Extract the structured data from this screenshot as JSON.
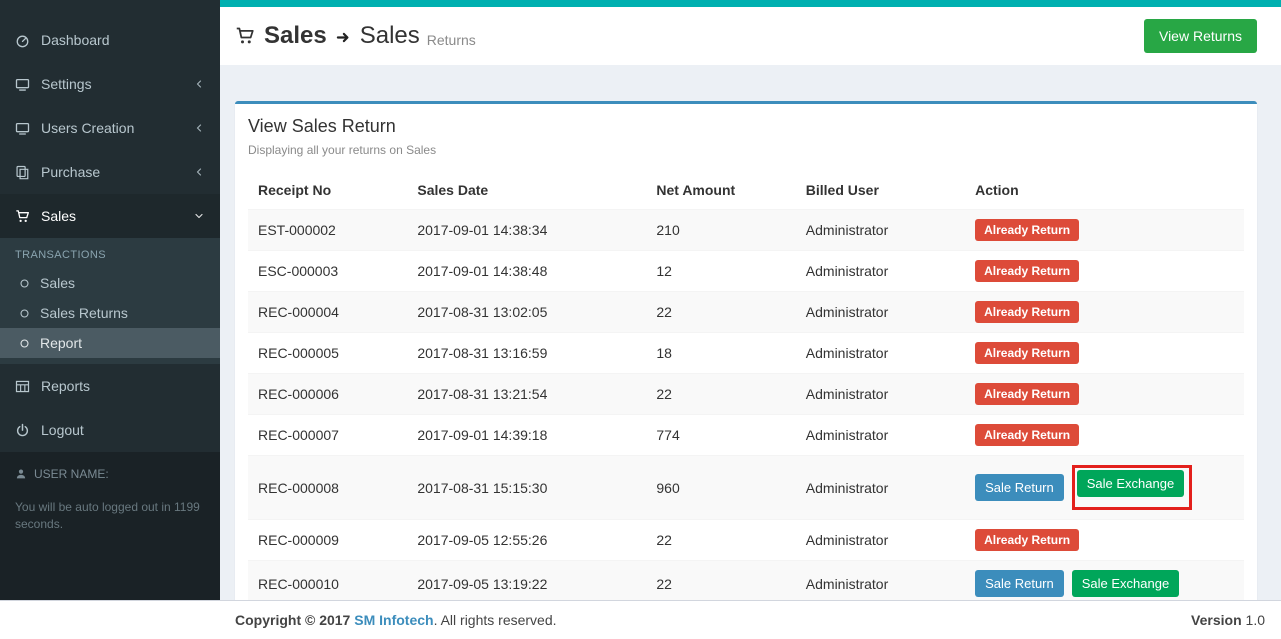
{
  "colors": {
    "top_accent": "#00b0b0",
    "sidebar_bg": "#222d32",
    "panel_top_border": "#3c8dbc",
    "view_returns_green": "#28a745",
    "already_return_red": "#dd4b39",
    "sale_return_blue": "#3c8dbc",
    "sale_exchange_green": "#00a65a",
    "annotation_red": "#e3201c"
  },
  "sidebar": {
    "items": [
      {
        "label": "Dashboard",
        "icon": "dashboard-icon"
      },
      {
        "label": "Settings",
        "icon": "desktop-icon",
        "chevron": "left"
      },
      {
        "label": "Users Creation",
        "icon": "desktop-icon",
        "chevron": "left"
      },
      {
        "label": "Purchase",
        "icon": "files-icon",
        "chevron": "left"
      },
      {
        "label": "Sales",
        "icon": "cart-icon",
        "chevron": "down",
        "active": true
      }
    ],
    "section_label": "TRANSACTIONS",
    "subitems": [
      {
        "label": "Sales"
      },
      {
        "label": "Sales Returns"
      },
      {
        "label": "Report",
        "highlighted": true
      }
    ],
    "reports_label": "Reports",
    "logout_label": "Logout",
    "user_label": "USER NAME:",
    "auto_logout_notice": "You will be auto logged out in 1199 seconds."
  },
  "header": {
    "title_primary": "Sales",
    "title_secondary": "Sales",
    "title_suffix": "Returns",
    "view_returns_label": "View Returns"
  },
  "panel": {
    "title": "View Sales Return",
    "subtitle": "Displaying all your returns on Sales"
  },
  "table": {
    "columns": [
      "Receipt No",
      "Sales Date",
      "Net Amount",
      "Billed User",
      "Action"
    ],
    "rows": [
      {
        "receipt": "EST-000002",
        "date": "2017-09-01 14:38:34",
        "amount": "210",
        "user": "Administrator",
        "actions": [
          {
            "label": "Already Return",
            "type": "danger"
          }
        ]
      },
      {
        "receipt": "ESC-000003",
        "date": "2017-09-01 14:38:48",
        "amount": "12",
        "user": "Administrator",
        "actions": [
          {
            "label": "Already Return",
            "type": "danger"
          }
        ]
      },
      {
        "receipt": "REC-000004",
        "date": "2017-08-31 13:02:05",
        "amount": "22",
        "user": "Administrator",
        "actions": [
          {
            "label": "Already Return",
            "type": "danger"
          }
        ]
      },
      {
        "receipt": "REC-000005",
        "date": "2017-08-31 13:16:59",
        "amount": "18",
        "user": "Administrator",
        "actions": [
          {
            "label": "Already Return",
            "type": "danger"
          }
        ]
      },
      {
        "receipt": "REC-000006",
        "date": "2017-08-31 13:21:54",
        "amount": "22",
        "user": "Administrator",
        "actions": [
          {
            "label": "Already Return",
            "type": "danger"
          }
        ]
      },
      {
        "receipt": "REC-000007",
        "date": "2017-09-01 14:39:18",
        "amount": "774",
        "user": "Administrator",
        "actions": [
          {
            "label": "Already Return",
            "type": "danger"
          }
        ]
      },
      {
        "receipt": "REC-000008",
        "date": "2017-08-31 15:15:30",
        "amount": "960",
        "user": "Administrator",
        "actions": [
          {
            "label": "Sale Return",
            "type": "primary"
          },
          {
            "label": "Sale Exchange",
            "type": "success",
            "highlighted": true
          }
        ]
      },
      {
        "receipt": "REC-000009",
        "date": "2017-09-05 12:55:26",
        "amount": "22",
        "user": "Administrator",
        "actions": [
          {
            "label": "Already Return",
            "type": "danger"
          }
        ]
      },
      {
        "receipt": "REC-000010",
        "date": "2017-09-05 13:19:22",
        "amount": "22",
        "user": "Administrator",
        "actions": [
          {
            "label": "Sale Return",
            "type": "primary"
          },
          {
            "label": "Sale Exchange",
            "type": "success"
          }
        ]
      }
    ]
  },
  "footer": {
    "copyright_prefix": "Copyright © 2017",
    "company": "SM Infotech",
    "copyright_suffix": ". All rights reserved.",
    "version_label": "Version",
    "version_value": "1.0"
  }
}
